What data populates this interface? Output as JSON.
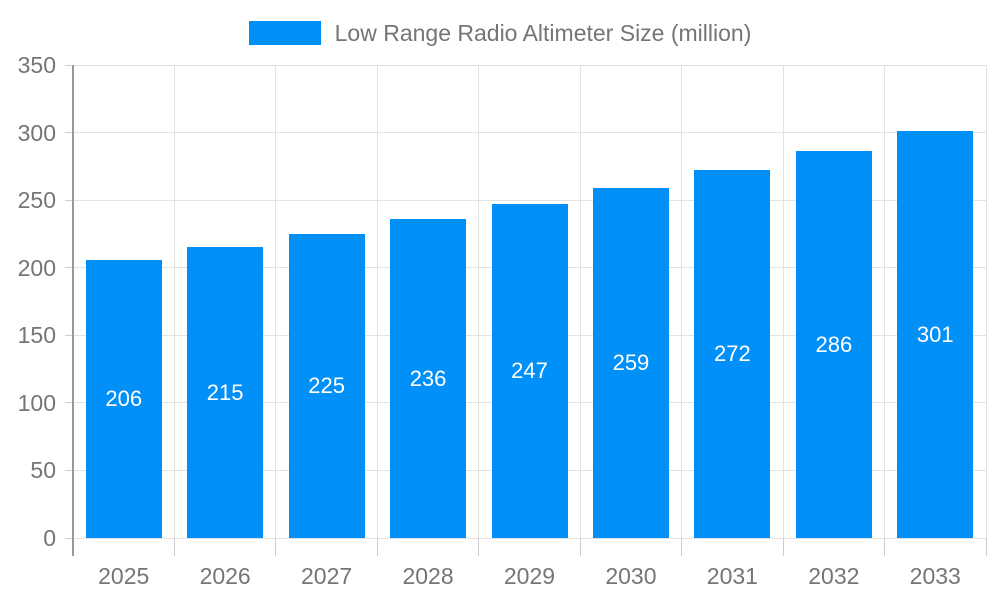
{
  "chart_data": {
    "type": "bar",
    "title": "Low Range Radio Altimeter Size (million)",
    "legend": {
      "label": "Low Range Radio Altimeter Size (million)",
      "position": "top"
    },
    "categories": [
      "2025",
      "2026",
      "2027",
      "2028",
      "2029",
      "2030",
      "2031",
      "2032",
      "2033"
    ],
    "values": [
      206,
      215,
      225,
      236,
      247,
      259,
      272,
      286,
      301
    ],
    "xlabel": "",
    "ylabel": "",
    "ylim": [
      0,
      350
    ],
    "yticks": [
      0,
      50,
      100,
      150,
      200,
      250,
      300,
      350
    ],
    "grid": true,
    "bar_value_labels_shown": true
  },
  "colors": {
    "bar": "#0190f8",
    "grid": "#e3e3e3",
    "axis_line": "#999999",
    "tick": "#cccccc",
    "text": "#757575",
    "bar_label_text": "#ffffff"
  }
}
